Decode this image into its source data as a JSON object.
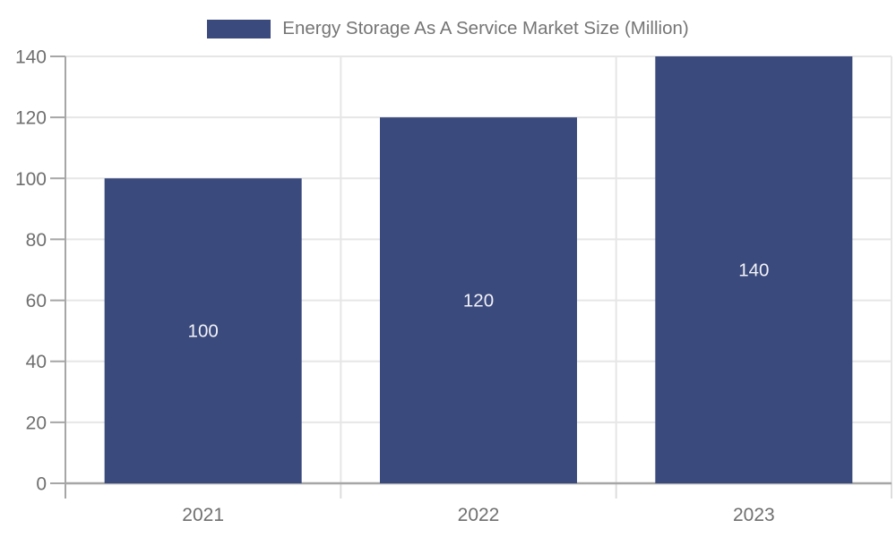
{
  "chart_data": {
    "type": "bar",
    "title": "Energy Storage As A Service Market Size (Million)",
    "legend": [
      "Energy Storage As A Service Market Size (Million)"
    ],
    "legend_position": "top-center",
    "categories": [
      "2021",
      "2022",
      "2023"
    ],
    "values": [
      100,
      120,
      140
    ],
    "value_labels": [
      "100",
      "120",
      "140"
    ],
    "xlabel": "",
    "ylabel": "",
    "ylim": [
      0,
      140
    ],
    "y_ticks": [
      0,
      20,
      40,
      60,
      80,
      100,
      120,
      140
    ],
    "grid": "on",
    "colors": {
      "bar": "#3A4A7D",
      "value_label_text": "#F2F2F6",
      "axis_line": "#A6A6A6",
      "gridline": "#E6E6E6",
      "boundary_tick": "#DDDDDD",
      "tick_label_text": "#6F6F6F",
      "legend_text": "#757575",
      "background": "#FFFFFF"
    }
  }
}
